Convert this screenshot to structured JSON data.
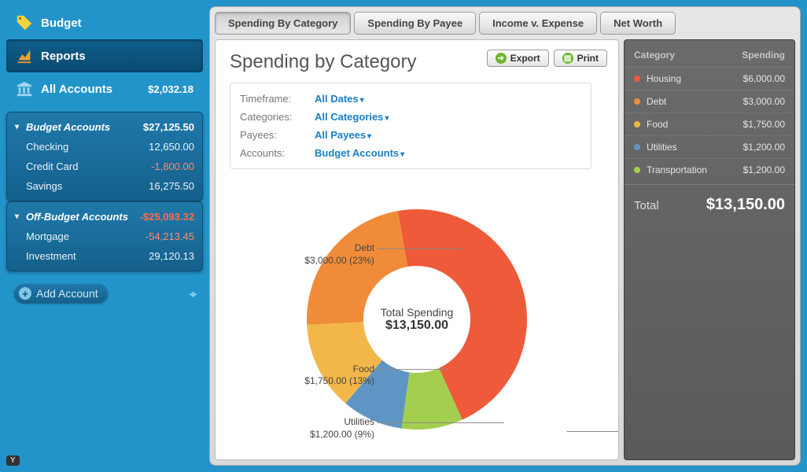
{
  "sidebar": {
    "nav": [
      {
        "id": "budget",
        "label": "Budget",
        "icon": "tag-icon"
      },
      {
        "id": "reports",
        "label": "Reports",
        "icon": "chart-icon",
        "active": true
      },
      {
        "id": "all",
        "label": "All Accounts",
        "icon": "bank-icon",
        "amount": "$2,032.18"
      }
    ],
    "groups": [
      {
        "title": "Budget Accounts",
        "total": "$27,125.50",
        "rows": [
          {
            "name": "Checking",
            "amount": "12,650.00"
          },
          {
            "name": "Credit Card",
            "amount": "-1,800.00",
            "neg": true
          },
          {
            "name": "Savings",
            "amount": "16,275.50"
          }
        ]
      },
      {
        "title": "Off-Budget Accounts",
        "total": "-$25,093.32",
        "total_neg": true,
        "rows": [
          {
            "name": "Mortgage",
            "amount": "-54,213.45",
            "neg": true
          },
          {
            "name": "Investment",
            "amount": "29,120.13"
          }
        ]
      }
    ],
    "add_account_label": "Add Account",
    "y_badge": "Y"
  },
  "tabs": [
    {
      "label": "Spending By Category",
      "active": true
    },
    {
      "label": "Spending By Payee"
    },
    {
      "label": "Income v. Expense"
    },
    {
      "label": "Net Worth"
    }
  ],
  "report": {
    "title": "Spending by Category",
    "actions": {
      "export": "Export",
      "print": "Print"
    },
    "filters": [
      {
        "label": "Timeframe:",
        "value": "All Dates"
      },
      {
        "label": "Categories:",
        "value": "All Categories"
      },
      {
        "label": "Payees:",
        "value": "All Payees"
      },
      {
        "label": "Accounts:",
        "value": "Budget Accounts"
      }
    ]
  },
  "chart": {
    "type": "donut",
    "total_label": "Total Spending",
    "total_value": "$13,150.00",
    "inner_radius": 68,
    "outer_radius": 140,
    "colors": {
      "Housing": "#ef5a3a",
      "Transportation": "#a4cf4e",
      "Utilities": "#5f95c4",
      "Food": "#f3b648",
      "Debt": "#f08c39"
    },
    "segments": [
      {
        "category": "Housing",
        "amount": "$6,000.00",
        "pct": 46
      },
      {
        "category": "Transportation",
        "amount": "$1,200.00",
        "pct": 9
      },
      {
        "category": "Utilities",
        "amount": "$1,200.00",
        "pct": 9
      },
      {
        "category": "Food",
        "amount": "$1,750.00",
        "pct": 13
      },
      {
        "category": "Debt",
        "amount": "$3,000.00",
        "pct": 23
      }
    ]
  },
  "legend": {
    "head_category": "Category",
    "head_spending": "Spending",
    "rows": [
      {
        "category": "Housing",
        "amount": "$6,000.00",
        "color": "#ef5a3a"
      },
      {
        "category": "Debt",
        "amount": "$3,000.00",
        "color": "#f08c39"
      },
      {
        "category": "Food",
        "amount": "$1,750.00",
        "color": "#f3b648"
      },
      {
        "category": "Utilities",
        "amount": "$1,200.00",
        "color": "#5f95c4"
      },
      {
        "category": "Transportation",
        "amount": "$1,200.00",
        "color": "#a4cf4e"
      }
    ],
    "total_label": "Total",
    "total_value": "$13,150.00"
  }
}
